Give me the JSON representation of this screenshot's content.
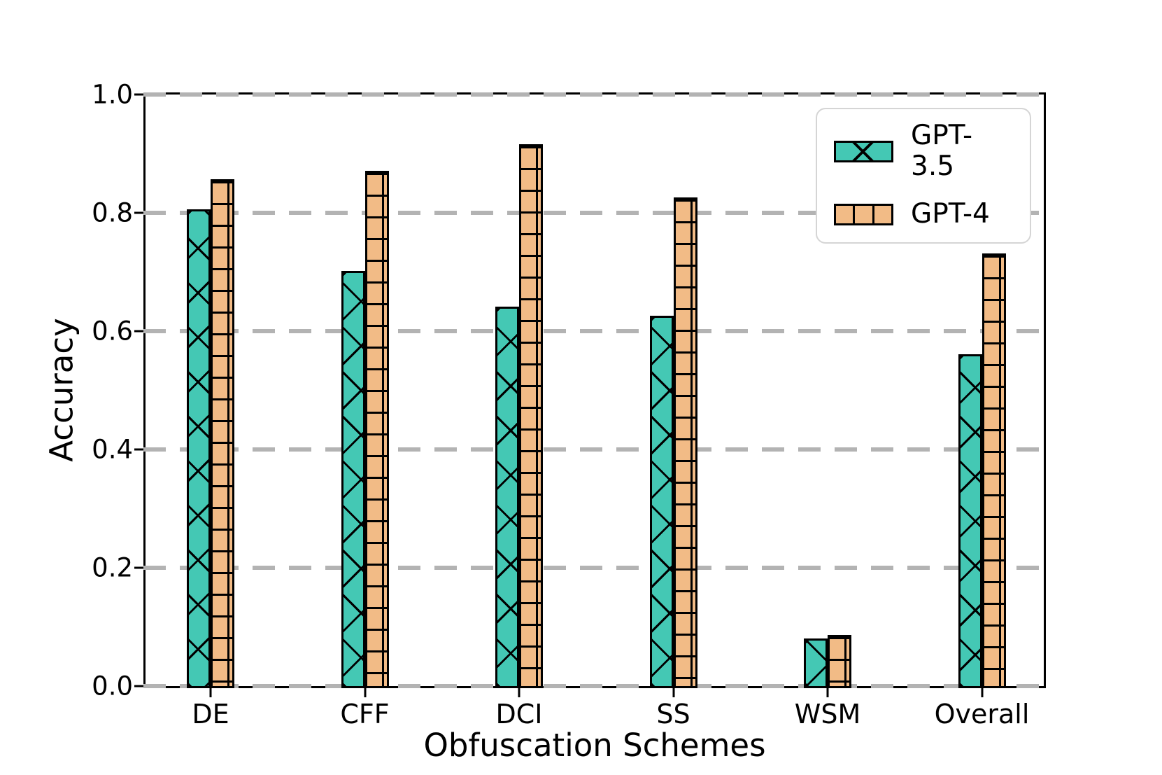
{
  "chart_data": {
    "type": "bar",
    "title": "",
    "xlabel": "Obfuscation Schemes",
    "ylabel": "Accuracy",
    "categories": [
      "DE",
      "CFF",
      "DCI",
      "SS",
      "WSM",
      "Overall"
    ],
    "series": [
      {
        "name": "GPT-3.5",
        "color": "#44C8B4",
        "hatch": "x",
        "values": [
          0.81,
          0.705,
          0.645,
          0.63,
          0.084,
          0.565
        ]
      },
      {
        "name": "GPT-4",
        "color": "#F2BB86",
        "hatch": "grid",
        "values": [
          0.86,
          0.875,
          0.92,
          0.83,
          0.09,
          0.735
        ]
      }
    ],
    "ylim": [
      0.0,
      1.0
    ],
    "yticks": [
      "0.0",
      "0.2",
      "0.4",
      "0.6",
      "0.8",
      "1.0"
    ],
    "grid": true,
    "gridline_color": "#b3b3b3",
    "gridline_style": "dashed",
    "legend_position": "upper right"
  },
  "legend": {
    "items": [
      {
        "label": "GPT-3.5"
      },
      {
        "label": "GPT-4"
      }
    ]
  }
}
